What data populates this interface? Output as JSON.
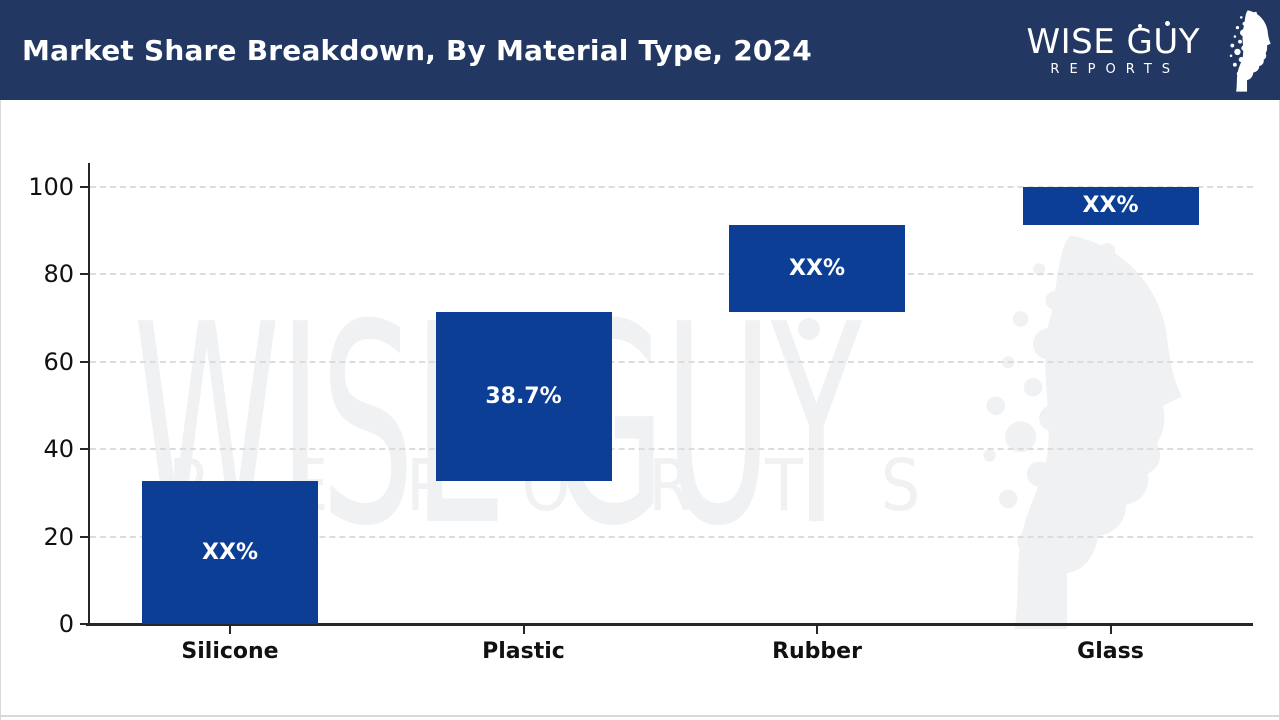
{
  "header": {
    "title": "Market Share Breakdown, By Material Type, 2024",
    "logo": {
      "brand": "WISE GUY",
      "sub": "REPORTS"
    }
  },
  "watermark": {
    "brand": "WISE GUY",
    "sub": "REPORTS"
  },
  "colors": {
    "header_bg": "#223761",
    "bar": "#0b3e94",
    "bar_label": "#ffffff",
    "grid": "#dcdcdc",
    "axis": "#262626",
    "tick_text": "#111111",
    "watermark": "#f0f1f3"
  },
  "chart_data": {
    "type": "bar",
    "subtype": "floating-segment-waterfall",
    "title": "Market Share Breakdown, By Material Type, 2024",
    "xlabel": "",
    "ylabel": "",
    "categories": [
      "Silicone",
      "Plastic",
      "Rubber",
      "Glass"
    ],
    "segments": [
      {
        "category": "Silicone",
        "start": 0,
        "end": 32.7,
        "value_pct": 32.7,
        "label": "XX%"
      },
      {
        "category": "Plastic",
        "start": 32.7,
        "end": 71.4,
        "value_pct": 38.7,
        "label": "38.7%"
      },
      {
        "category": "Rubber",
        "start": 71.4,
        "end": 91.2,
        "value_pct": 19.8,
        "label": "XX%"
      },
      {
        "category": "Glass",
        "start": 91.2,
        "end": 100,
        "value_pct": 8.8,
        "label": "XX%"
      }
    ],
    "ylim": [
      0,
      105
    ],
    "yticks": [
      0,
      20,
      40,
      60,
      80,
      100
    ],
    "grid": "horizontal-dashed",
    "legend": "none"
  }
}
